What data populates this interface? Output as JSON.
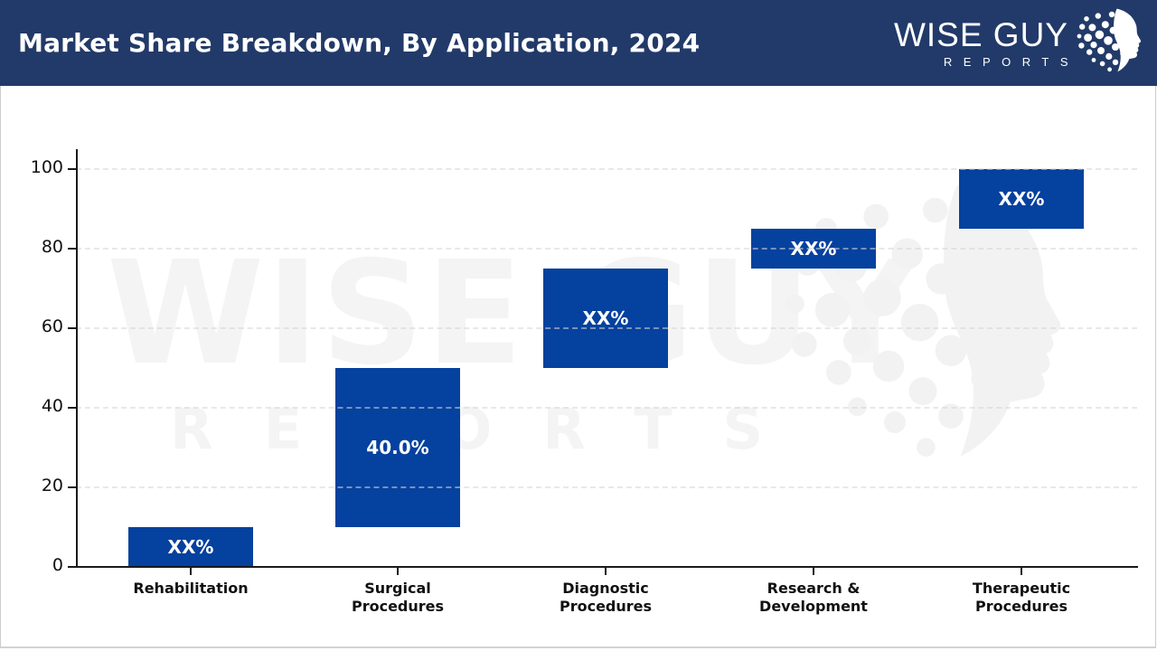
{
  "header": {
    "title": "Market Share Breakdown, By Application, 2024",
    "logo": {
      "name": "WISE GUY",
      "sub": "REPORTS"
    }
  },
  "watermark": {
    "name": "WISE GUY",
    "sub": "REPORTS"
  },
  "chart_data": {
    "type": "bar",
    "subtype": "waterfall",
    "title": "Market Share Breakdown, By Application, 2024",
    "categories": [
      "Rehabilitation",
      "Surgical\nProcedures",
      "Diagnostic\nProcedures",
      "Research &\nDevelopment",
      "Therapeutic\nProcedures"
    ],
    "bars": [
      {
        "category": "Rehabilitation",
        "start": 0,
        "end": 10,
        "value": 10,
        "label": "XX%"
      },
      {
        "category": "Surgical Procedures",
        "start": 10,
        "end": 50,
        "value": 40,
        "label": "40.0%"
      },
      {
        "category": "Diagnostic Procedures",
        "start": 50,
        "end": 75,
        "value": 25,
        "label": "XX%"
      },
      {
        "category": "Research & Development",
        "start": 75,
        "end": 85,
        "value": 10,
        "label": "XX%"
      },
      {
        "category": "Therapeutic Procedures",
        "start": 85,
        "end": 100,
        "value": 15,
        "label": "XX%"
      }
    ],
    "y_ticks": [
      0,
      20,
      40,
      60,
      80,
      100
    ],
    "ylim": [
      0,
      105
    ],
    "grid": true,
    "gridline_style": "dashed",
    "legend": false,
    "bar_color": "#05419e"
  },
  "colors": {
    "header_bg": "#223a69",
    "bar": "#05419e",
    "axis": "#1a1a1a",
    "gridline": "#d6d6d6",
    "watermark": "#f4f4f4"
  }
}
